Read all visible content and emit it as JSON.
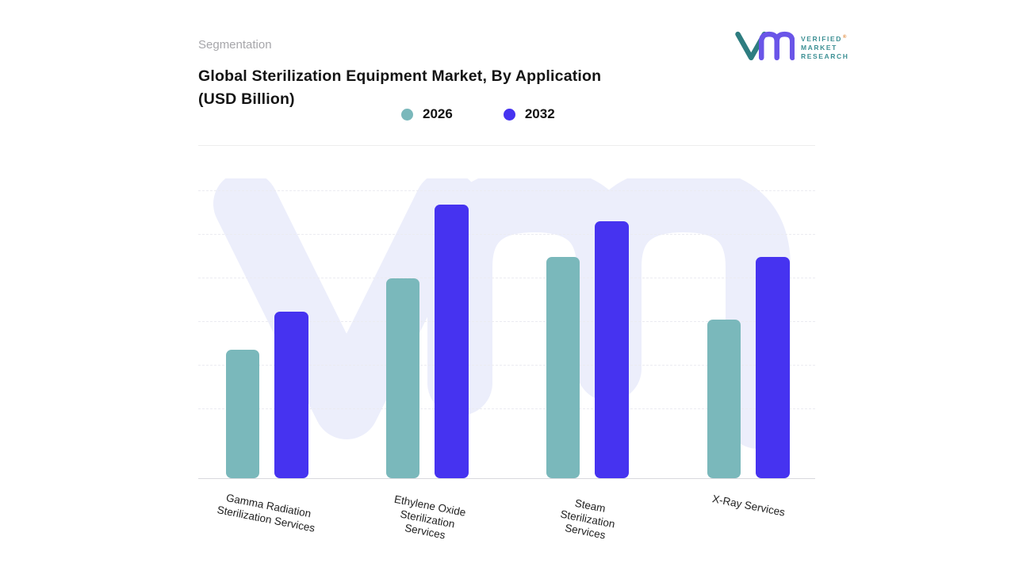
{
  "page": {
    "eyebrow": "Segmentation"
  },
  "header": {
    "title_line1": "Global Sterilization Equipment Market, By Application",
    "title_line2": "(USD Billion)"
  },
  "brand": {
    "lines": [
      "VERIFIED",
      "MARKET",
      "RESEARCH"
    ],
    "registered": "®"
  },
  "chart_data": {
    "type": "bar",
    "title": "Global Sterilization Equipment Market, By Application (USD Billion)",
    "categories": [
      "Gamma Radiation Sterilization Services",
      "Ethylene Oxide Sterilization Services",
      "Steam Sterilization Services",
      "X-Ray Services"
    ],
    "category_lines": [
      [
        "Gamma  Radiation",
        "Sterilization Services"
      ],
      [
        "Ethylene Oxide",
        "Sterilization",
        "Services"
      ],
      [
        "Steam",
        "Sterilization",
        "Services"
      ],
      [
        "X-Ray Services"
      ]
    ],
    "series": [
      {
        "name": "2026",
        "color": "#7ab8bb",
        "values": [
          47,
          73,
          81,
          58
        ]
      },
      {
        "name": "2032",
        "color": "#4633f0",
        "values": [
          61,
          100,
          94,
          81
        ]
      }
    ],
    "value_axis": {
      "visible": false,
      "note": "No numeric axis labels are shown in the figure; values are estimated relative bar heights scaled so the tallest bar (2032, Ethylene Oxide) = 100."
    },
    "legend_position": "top-center",
    "grid": "horizontal-dashed",
    "watermark": "VMR logo (light lavender) behind bars"
  }
}
